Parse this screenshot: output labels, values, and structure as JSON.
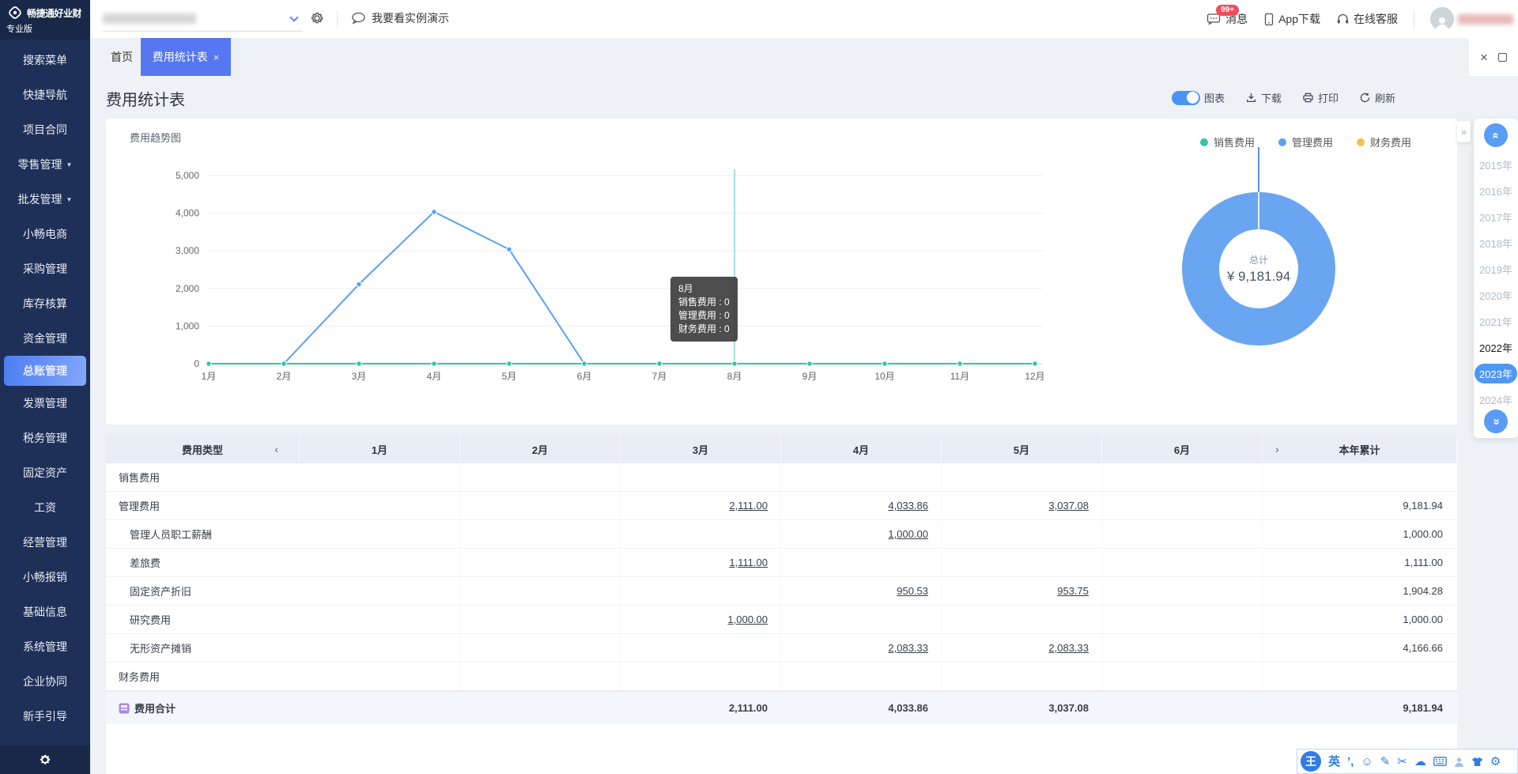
{
  "app": {
    "brand": "畅捷通好业财",
    "edition": "专业版",
    "demo_link": "我要看实例演示",
    "messages_label": "消息",
    "messages_badge": "99+",
    "app_download_label": "App下载",
    "online_service_label": "在线客服"
  },
  "tabs": {
    "home": "首页",
    "active": "费用统计表",
    "close": "×"
  },
  "sidebar": {
    "items": [
      {
        "label": "搜索菜单"
      },
      {
        "label": "快捷导航"
      },
      {
        "label": "项目合同"
      },
      {
        "label": "零售管理",
        "arrow": true
      },
      {
        "label": "批发管理",
        "arrow": true
      },
      {
        "label": "小畅电商"
      },
      {
        "label": "采购管理"
      },
      {
        "label": "库存核算"
      },
      {
        "label": "资金管理"
      },
      {
        "label": "总账管理",
        "active": true
      },
      {
        "label": "发票管理"
      },
      {
        "label": "税务管理"
      },
      {
        "label": "固定资产"
      },
      {
        "label": "工资"
      },
      {
        "label": "经营管理"
      },
      {
        "label": "小畅报销"
      },
      {
        "label": "基础信息"
      },
      {
        "label": "系统管理"
      },
      {
        "label": "企业协同"
      },
      {
        "label": "新手引导"
      }
    ]
  },
  "page": {
    "title": "费用统计表",
    "toolbar": {
      "chart_toggle": "图表",
      "download": "下载",
      "print": "打印",
      "refresh": "刷新"
    }
  },
  "chart_data": [
    {
      "type": "line",
      "title": "费用趋势图",
      "categories": [
        "1月",
        "2月",
        "3月",
        "4月",
        "5月",
        "6月",
        "7月",
        "8月",
        "9月",
        "10月",
        "11月",
        "12月"
      ],
      "series": [
        {
          "name": "销售费用",
          "color": "#2fc7a2",
          "values": [
            0,
            0,
            0,
            0,
            0,
            0,
            0,
            0,
            0,
            0,
            0,
            0
          ]
        },
        {
          "name": "管理费用",
          "color": "#58a1f5",
          "values": [
            0,
            0,
            2111.0,
            4033.86,
            3037.08,
            0,
            0,
            0,
            0,
            0,
            0,
            0
          ]
        },
        {
          "name": "财务费用",
          "color": "#f0c24a",
          "values": [
            0,
            0,
            0,
            0,
            0,
            0,
            0,
            0,
            0,
            0,
            0,
            0
          ]
        }
      ],
      "ylim": [
        0,
        5000
      ],
      "yticks": [
        "0",
        "1,000",
        "2,000",
        "3,000",
        "4,000",
        "5,000"
      ],
      "grid": true,
      "legend_position": "top-right",
      "crosshair_at": "8月",
      "tooltip": {
        "title": "8月",
        "items": [
          {
            "label": "销售费用",
            "value": "0"
          },
          {
            "label": "管理费用",
            "value": "0"
          },
          {
            "label": "财务费用",
            "value": "0"
          }
        ]
      }
    },
    {
      "type": "pie",
      "center_label": "总计",
      "center_value": "¥ 9,181.94",
      "slices": [
        {
          "name": "管理费用",
          "value": 9181.94,
          "color": "#69a5f1",
          "percent": 100
        }
      ],
      "legend_position": "none"
    }
  ],
  "years": {
    "list": [
      {
        "label": "2015年"
      },
      {
        "label": "2016年"
      },
      {
        "label": "2017年"
      },
      {
        "label": "2018年"
      },
      {
        "label": "2019年"
      },
      {
        "label": "2020年"
      },
      {
        "label": "2021年"
      },
      {
        "label": "2022年",
        "dark": true
      },
      {
        "label": "2023年"
      },
      {
        "label": "2024年"
      }
    ],
    "selected": "2023年"
  },
  "table": {
    "headers": [
      "费用类型",
      "1月",
      "2月",
      "3月",
      "4月",
      "5月",
      "6月",
      "本年累计"
    ],
    "rows": [
      {
        "label": "销售费用",
        "indent": 0,
        "cells": [
          "",
          "",
          "",
          "",
          "",
          "",
          ""
        ],
        "links": []
      },
      {
        "label": "管理费用",
        "indent": 0,
        "cells": [
          "",
          "",
          "2,111.00",
          "4,033.86",
          "3,037.08",
          "",
          "9,181.94"
        ],
        "links": [
          2,
          3,
          4
        ]
      },
      {
        "label": "管理人员职工薪酬",
        "indent": 1,
        "cells": [
          "",
          "",
          "",
          "1,000.00",
          "",
          "",
          "1,000.00"
        ],
        "links": [
          3
        ]
      },
      {
        "label": "差旅费",
        "indent": 1,
        "cells": [
          "",
          "",
          "1,111.00",
          "",
          "",
          "",
          "1,111.00"
        ],
        "links": [
          2
        ]
      },
      {
        "label": "固定资产折旧",
        "indent": 1,
        "cells": [
          "",
          "",
          "",
          "950.53",
          "953.75",
          "",
          "1,904.28"
        ],
        "links": [
          3,
          4
        ]
      },
      {
        "label": "研究费用",
        "indent": 1,
        "cells": [
          "",
          "",
          "1,000.00",
          "",
          "",
          "",
          "1,000.00"
        ],
        "links": [
          2
        ]
      },
      {
        "label": "无形资产摊销",
        "indent": 1,
        "cells": [
          "",
          "",
          "",
          "2,083.33",
          "2,083.33",
          "",
          "4,166.66"
        ],
        "links": [
          3,
          4
        ]
      },
      {
        "label": "财务费用",
        "indent": 0,
        "cells": [
          "",
          "",
          "",
          "",
          "",
          "",
          ""
        ],
        "links": []
      }
    ],
    "total_row": {
      "label": "费用合计",
      "cells": [
        "",
        "",
        "2,111.00",
        "4,033.86",
        "3,037.08",
        "",
        "9,181.94"
      ]
    }
  },
  "ime": {
    "logo_char": "王",
    "lang_label": "英",
    "icon_names": [
      "punctuation",
      "emoji",
      "pencil",
      "scissors",
      "cloud",
      "keyboard",
      "person",
      "skin",
      "settings"
    ]
  }
}
